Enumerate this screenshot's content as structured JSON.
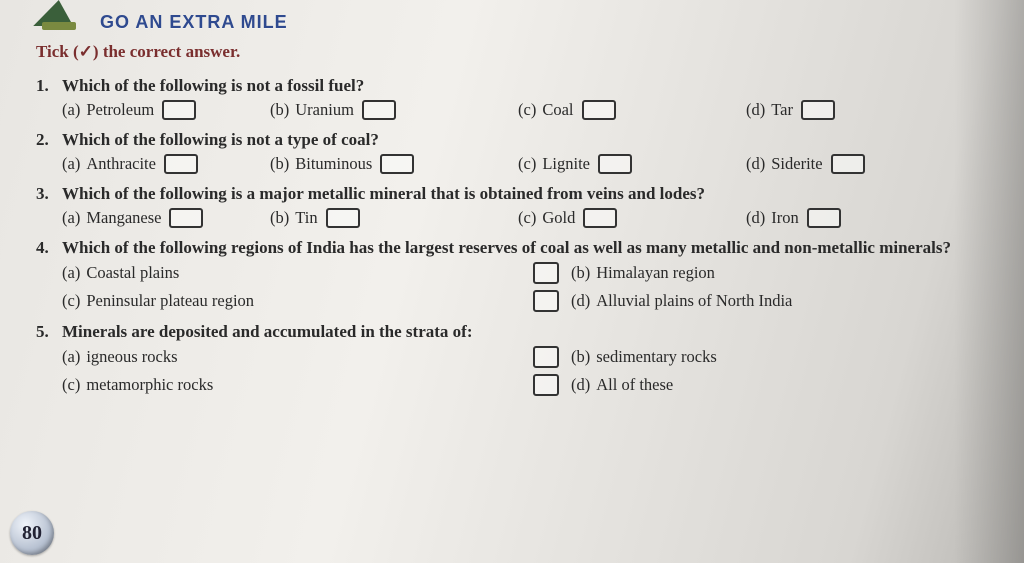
{
  "header": {
    "title": "GO AN EXTRA MILE"
  },
  "instruction": "Tick (✓) the correct answer.",
  "page_number": "80",
  "colors": {
    "instruction": "#7a2e2e",
    "header_title": "#2f4a8f",
    "body_text": "#2a2a2a",
    "checkbox_border": "#333333",
    "bg_from": "#e8e6e2",
    "bg_to": "#b8b6b2"
  },
  "typography": {
    "body_family": "Georgia, Times New Roman, serif",
    "header_family": "Arial, sans-serif",
    "q_fontsize_pt": 13,
    "opt_fontsize_pt": 12,
    "instruction_fontsize_pt": 13,
    "header_fontsize_pt": 14
  },
  "questions": [
    {
      "num": "1.",
      "text": "Which of the following is not a fossil fuel?",
      "layout": "row4",
      "options": [
        {
          "label": "(a)",
          "text": "Petroleum"
        },
        {
          "label": "(b)",
          "text": "Uranium"
        },
        {
          "label": "(c)",
          "text": "Coal"
        },
        {
          "label": "(d)",
          "text": "Tar"
        }
      ]
    },
    {
      "num": "2.",
      "text": "Which of the following is not a type of coal?",
      "layout": "row4",
      "options": [
        {
          "label": "(a)",
          "text": "Anthracite"
        },
        {
          "label": "(b)",
          "text": "Bituminous"
        },
        {
          "label": "(c)",
          "text": "Lignite"
        },
        {
          "label": "(d)",
          "text": "Siderite"
        }
      ]
    },
    {
      "num": "3.",
      "text": "Which of the following is a major metallic mineral that is obtained from veins and lodes?",
      "layout": "row4",
      "options": [
        {
          "label": "(a)",
          "text": "Manganese"
        },
        {
          "label": "(b)",
          "text": "Tin"
        },
        {
          "label": "(c)",
          "text": "Gold"
        },
        {
          "label": "(d)",
          "text": "Iron"
        }
      ]
    },
    {
      "num": "4.",
      "text": "Which of the following regions of India has the largest reserves of coal as well as many metallic and non-metallic minerals?",
      "layout": "grid2",
      "options": [
        {
          "label": "(a)",
          "text": "Coastal plains"
        },
        {
          "label": "(b)",
          "text": "Himalayan region"
        },
        {
          "label": "(c)",
          "text": "Peninsular plateau region"
        },
        {
          "label": "(d)",
          "text": "Alluvial plains of North India"
        }
      ]
    },
    {
      "num": "5.",
      "text": "Minerals are deposited and accumulated in the strata of:",
      "layout": "grid2",
      "options": [
        {
          "label": "(a)",
          "text": "igneous rocks"
        },
        {
          "label": "(b)",
          "text": "sedimentary rocks"
        },
        {
          "label": "(c)",
          "text": "metamorphic rocks"
        },
        {
          "label": "(d)",
          "text": "All of these"
        }
      ]
    }
  ]
}
